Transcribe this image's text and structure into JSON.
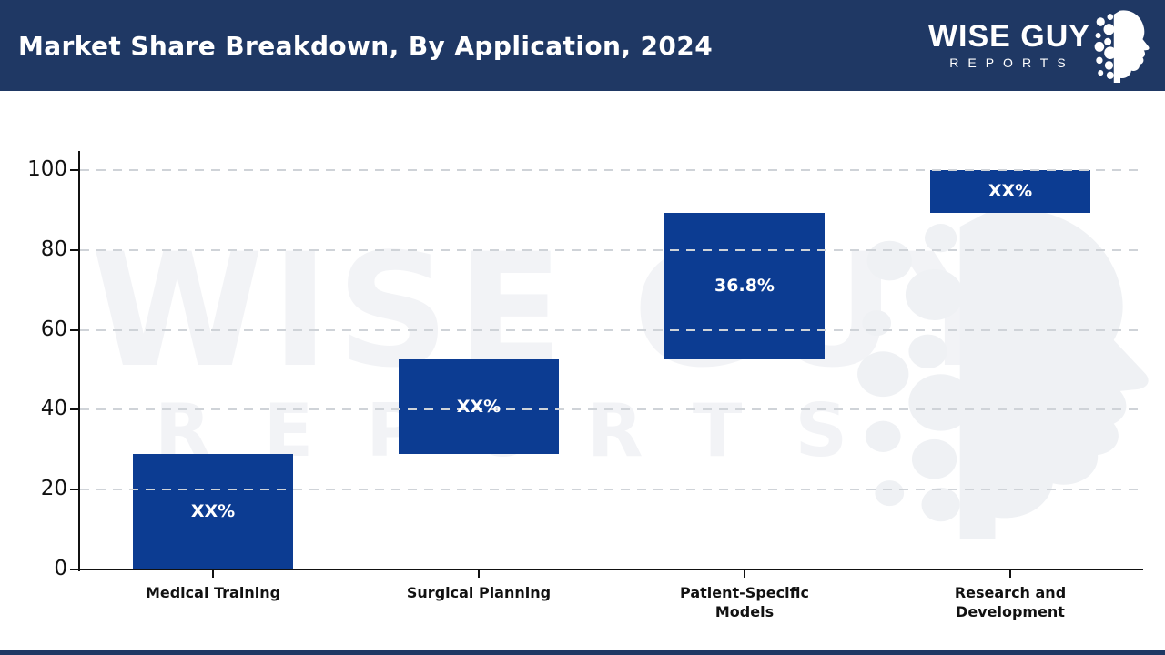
{
  "header": {
    "title": "Market Share Breakdown, By Application, 2024",
    "logo": {
      "primary": "WISE GUY",
      "secondary": "REPORTS"
    }
  },
  "watermark": {
    "primary": "WISE GUY",
    "secondary": "REPORTS"
  },
  "chart_data": {
    "type": "bar",
    "variant": "waterfall",
    "title": "Market Share Breakdown, By Application, 2024",
    "categories": [
      "Medical Training",
      "Surgical Planning",
      "Patient-Specific Models",
      "Research and Development"
    ],
    "categories_display": [
      "Medical Training",
      "Surgical Planning",
      "Patient-Specific\nModels",
      "Research and\nDevelopment"
    ],
    "segments": [
      {
        "category": "Medical Training",
        "start": 0,
        "end": 29.0,
        "value": 29.0,
        "label": "XX%"
      },
      {
        "category": "Surgical Planning",
        "start": 29.0,
        "end": 52.6,
        "value": 23.6,
        "label": "XX%"
      },
      {
        "category": "Patient-Specific Models",
        "start": 52.6,
        "end": 89.4,
        "value": 36.8,
        "label": "36.8%"
      },
      {
        "category": "Research and Development",
        "start": 89.4,
        "end": 100.0,
        "value": 10.6,
        "label": "XX%"
      }
    ],
    "xlabel": "",
    "ylabel": "",
    "ylim": [
      0,
      104
    ],
    "yticks": [
      0,
      20,
      40,
      60,
      80,
      100
    ],
    "grid": "horizontal-dashed",
    "legend": "none",
    "bar_color": "#0c3c92",
    "bar_label_color": "#ffffff",
    "axis_color": "#111111",
    "gridline_color": "#cfd3d8"
  },
  "colors": {
    "header_bg": "#1f3864",
    "footer_bg": "#1f3864",
    "background": "#ffffff",
    "watermark": "#f2f3f6"
  }
}
